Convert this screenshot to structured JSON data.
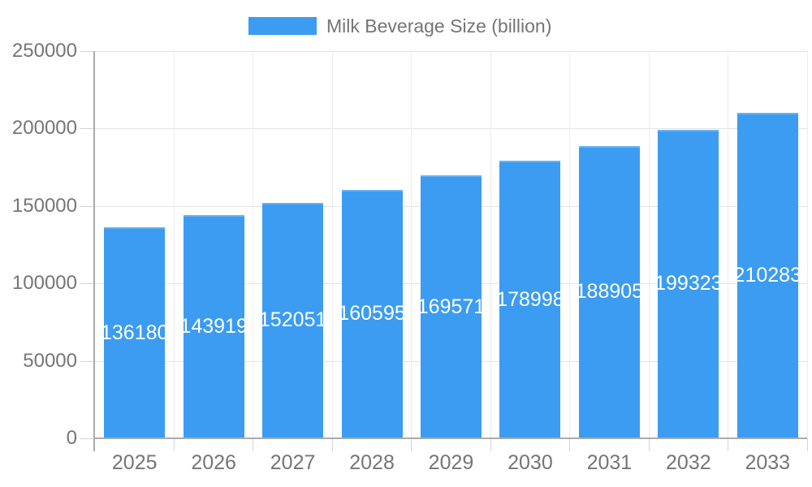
{
  "legend": {
    "label": "Milk Beverage Size (billion)"
  },
  "chart_data": {
    "type": "bar",
    "title": "",
    "series_name": "Milk Beverage Size (billion)",
    "categories": [
      "2025",
      "2026",
      "2027",
      "2028",
      "2029",
      "2030",
      "2031",
      "2032",
      "2033"
    ],
    "values": [
      136180,
      143919,
      152051,
      160595,
      169571,
      178998,
      188905,
      199323,
      210283
    ],
    "bar_labels": [
      "136180",
      "143919",
      "152051",
      "160595",
      "169571",
      "178998",
      "188905",
      "199323",
      "210283"
    ],
    "xlabel": "",
    "ylabel": "",
    "ylim": [
      0,
      250000
    ],
    "ytick_step": 50000,
    "ytick_labels": [
      "0",
      "50000",
      "100000",
      "150000",
      "200000",
      "250000"
    ],
    "legend_position": "top",
    "grid": true,
    "colors": {
      "bar": "#3b9cf2",
      "bar_label_text": "#ffffff",
      "axis_text": "#757575",
      "gridline_h": "#e4e4e4",
      "gridline_v": "#ececec",
      "axis_line": "#ababab",
      "tick": "#d4d4d4",
      "background": "#ffffff"
    }
  }
}
